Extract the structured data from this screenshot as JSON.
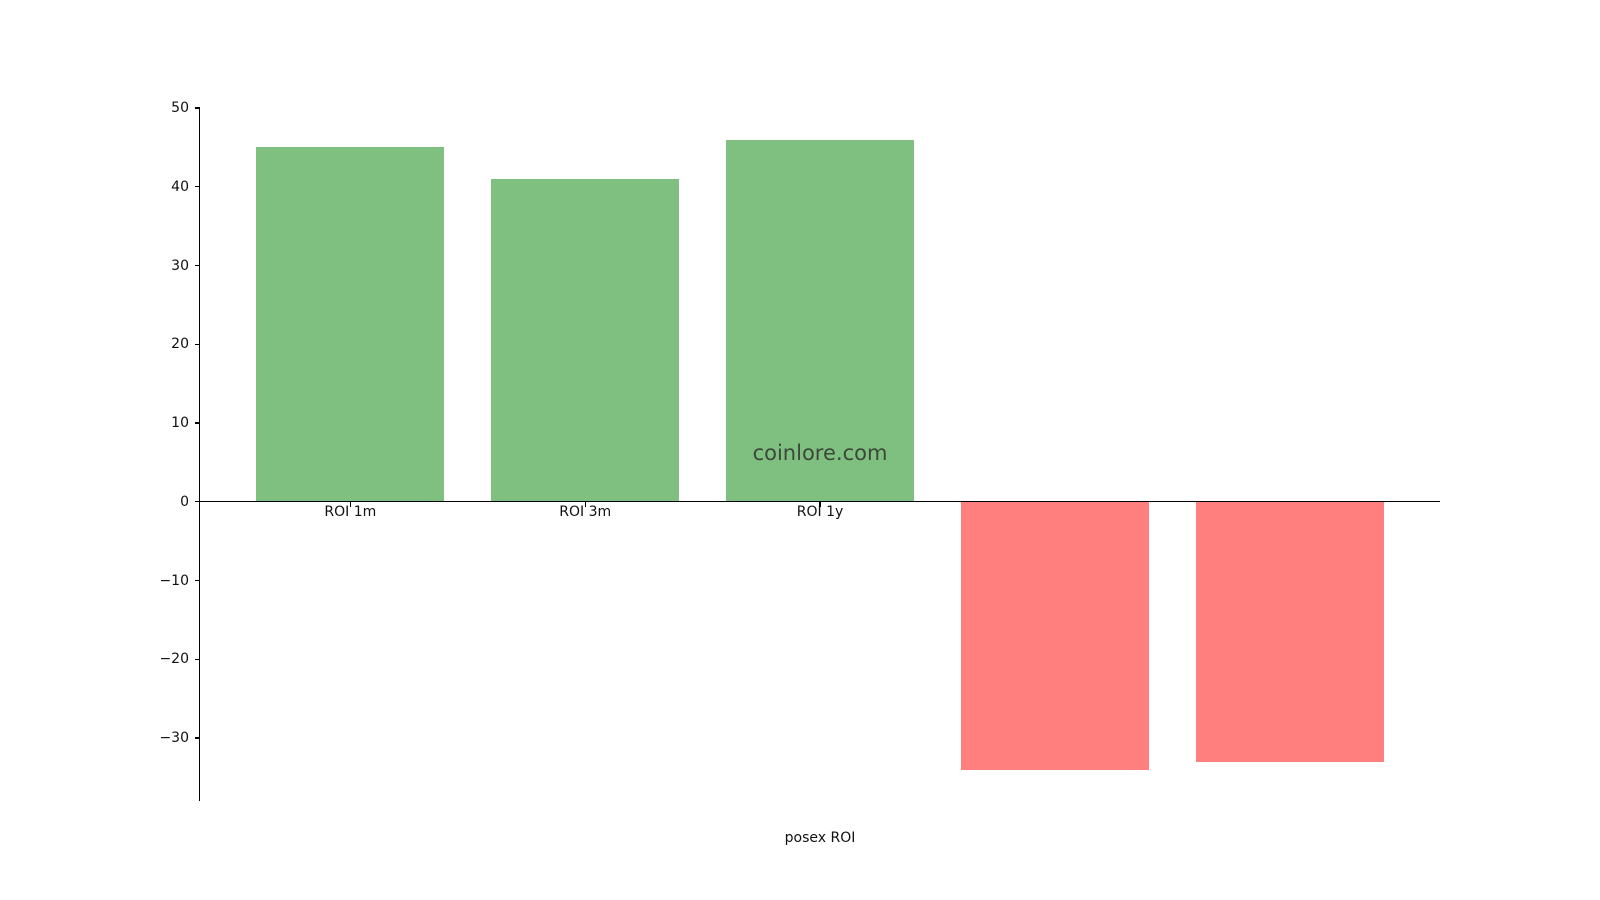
{
  "watermark": "coinlore.com",
  "chart_data": {
    "type": "bar",
    "xlabel": "posex ROI",
    "categories": [
      "ROI 1m",
      "ROI 3m",
      "ROI 1y",
      null,
      null
    ],
    "values": [
      45,
      41,
      46,
      -34,
      -33
    ],
    "ylim": [
      -38,
      50
    ],
    "xlim": [
      -0.64,
      4.64
    ],
    "bar_width_fraction": 0.8,
    "yticks": [
      50,
      40,
      30,
      20,
      10,
      0,
      -10,
      -20,
      -30
    ],
    "ytick_labels": [
      "50",
      "40",
      "30",
      "20",
      "10",
      "0",
      "−10",
      "−20",
      "−30"
    ],
    "grid": false,
    "legend": false,
    "colors": {
      "positive_bar": "#7fbf7f",
      "negative_bar": "#ff7f7f",
      "axis": "#000000",
      "text": "#111111"
    }
  }
}
